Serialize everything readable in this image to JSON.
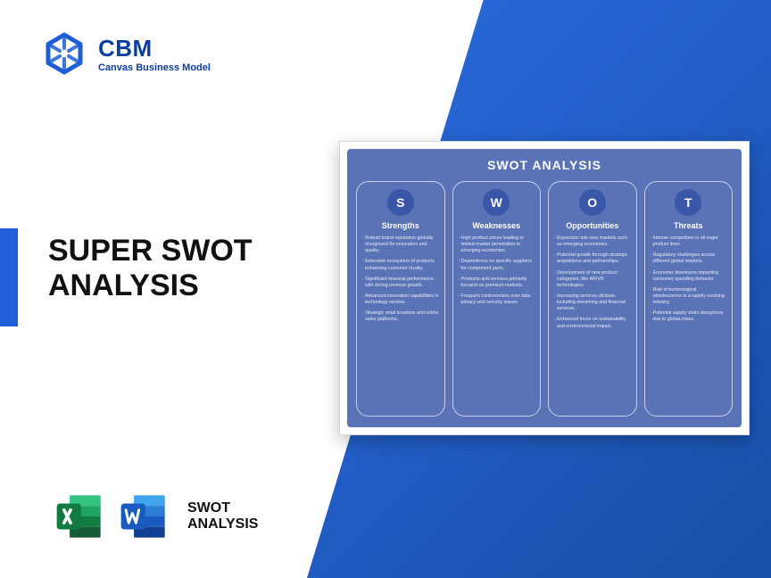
{
  "brand": {
    "abbr": "CBM",
    "tagline": "Canvas Business Model",
    "logo_color": "#1f5ed6"
  },
  "title_line1": "SUPER SWOT",
  "title_line2": "ANALYSIS",
  "colors": {
    "blue_gradient_from": "#2a6be0",
    "blue_gradient_to": "#174ea6",
    "accent": "#1f5ed6",
    "card_bg": "#5a72b6",
    "circle_bg": "#3a56a8",
    "col_border": "#c8d2ee",
    "text_dark": "#111111",
    "excel_dark": "#107c41",
    "excel_light": "#21a366",
    "word_dark": "#185abd",
    "word_light": "#41a5ee"
  },
  "files_label_line1": "SWOT",
  "files_label_line2": "ANALYSIS",
  "swot": {
    "title": "SWOT ANALYSIS",
    "columns": [
      {
        "letter": "S",
        "heading": "Strengths",
        "items": [
          "Robust brand reputation globally recognized for innovation and quality.",
          "Extensive ecosystem of products enhancing customer loyalty.",
          "Significant financial performance with strong revenue growth.",
          "Advanced innovation capabilities in technology sectors.",
          "Strategic retail locations and online sales platforms."
        ]
      },
      {
        "letter": "W",
        "heading": "Weaknesses",
        "items": [
          "High product prices leading to limited market penetration in emerging economies.",
          "Dependence on specific suppliers for component parts.",
          "Products and services primarily focused on premium markets.",
          "Frequent controversies over data privacy and security issues."
        ]
      },
      {
        "letter": "O",
        "heading": "Opportunities",
        "items": [
          "Expansion into new markets such as emerging economies.",
          "Potential growth through strategic acquisitions and partnerships.",
          "Development of new product categories, like AR/VR technologies.",
          "Increasing services division, including streaming and financial services.",
          "Enhanced focus on sustainability and environmental impact."
        ]
      },
      {
        "letter": "T",
        "heading": "Threats",
        "items": [
          "Intense competition in all major product lines.",
          "Regulatory challenges across different global markets.",
          "Economic downturns impacting consumer spending behavior.",
          "Risk of technological obsolescence in a rapidly evolving industry.",
          "Potential supply chain disruptions due to global crises."
        ]
      }
    ]
  }
}
